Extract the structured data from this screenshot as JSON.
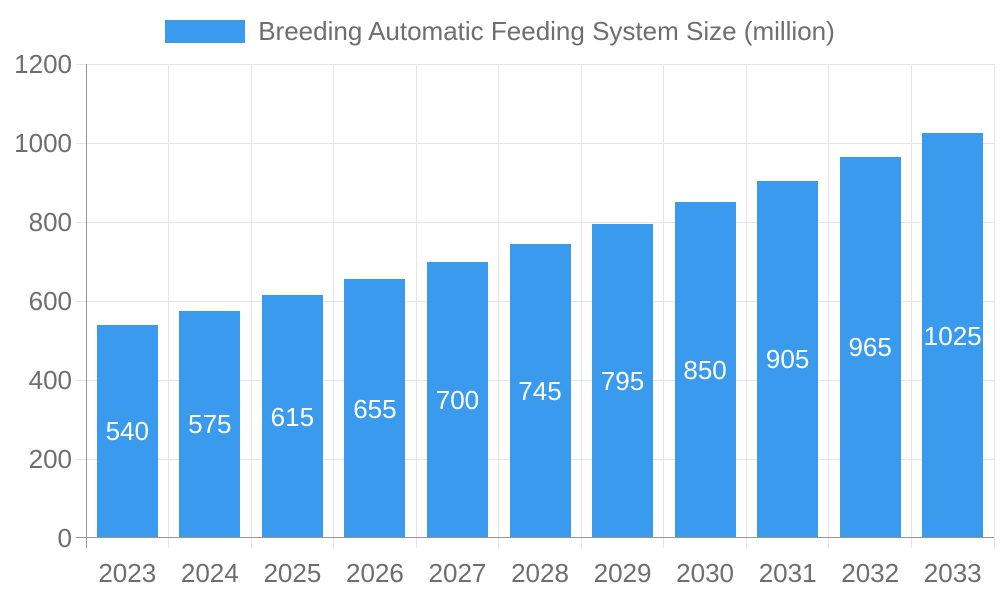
{
  "chart_data": {
    "type": "bar",
    "title": "Breeding Automatic Feeding System Size (million)",
    "series_name": "Breeding Automatic Feeding System Size (million)",
    "categories": [
      "2023",
      "2024",
      "2025",
      "2026",
      "2027",
      "2028",
      "2029",
      "2030",
      "2031",
      "2032",
      "2033"
    ],
    "values": [
      540,
      575,
      615,
      655,
      700,
      745,
      795,
      850,
      905,
      965,
      1025
    ],
    "xlabel": "",
    "ylabel": "",
    "ylim": [
      0,
      1200
    ],
    "yticks": [
      0,
      200,
      400,
      600,
      800,
      1000,
      1200
    ],
    "grid": true,
    "legend_position": "top",
    "data_labels_position": "inside-center",
    "bar_color": "#3a9aed",
    "bar_label_color": "#ffffff",
    "axis_text_color": "#6e6e6e",
    "gridline_color": "#e6e6e6",
    "axis_line_color": "#969696",
    "background_color": "#ffffff"
  }
}
